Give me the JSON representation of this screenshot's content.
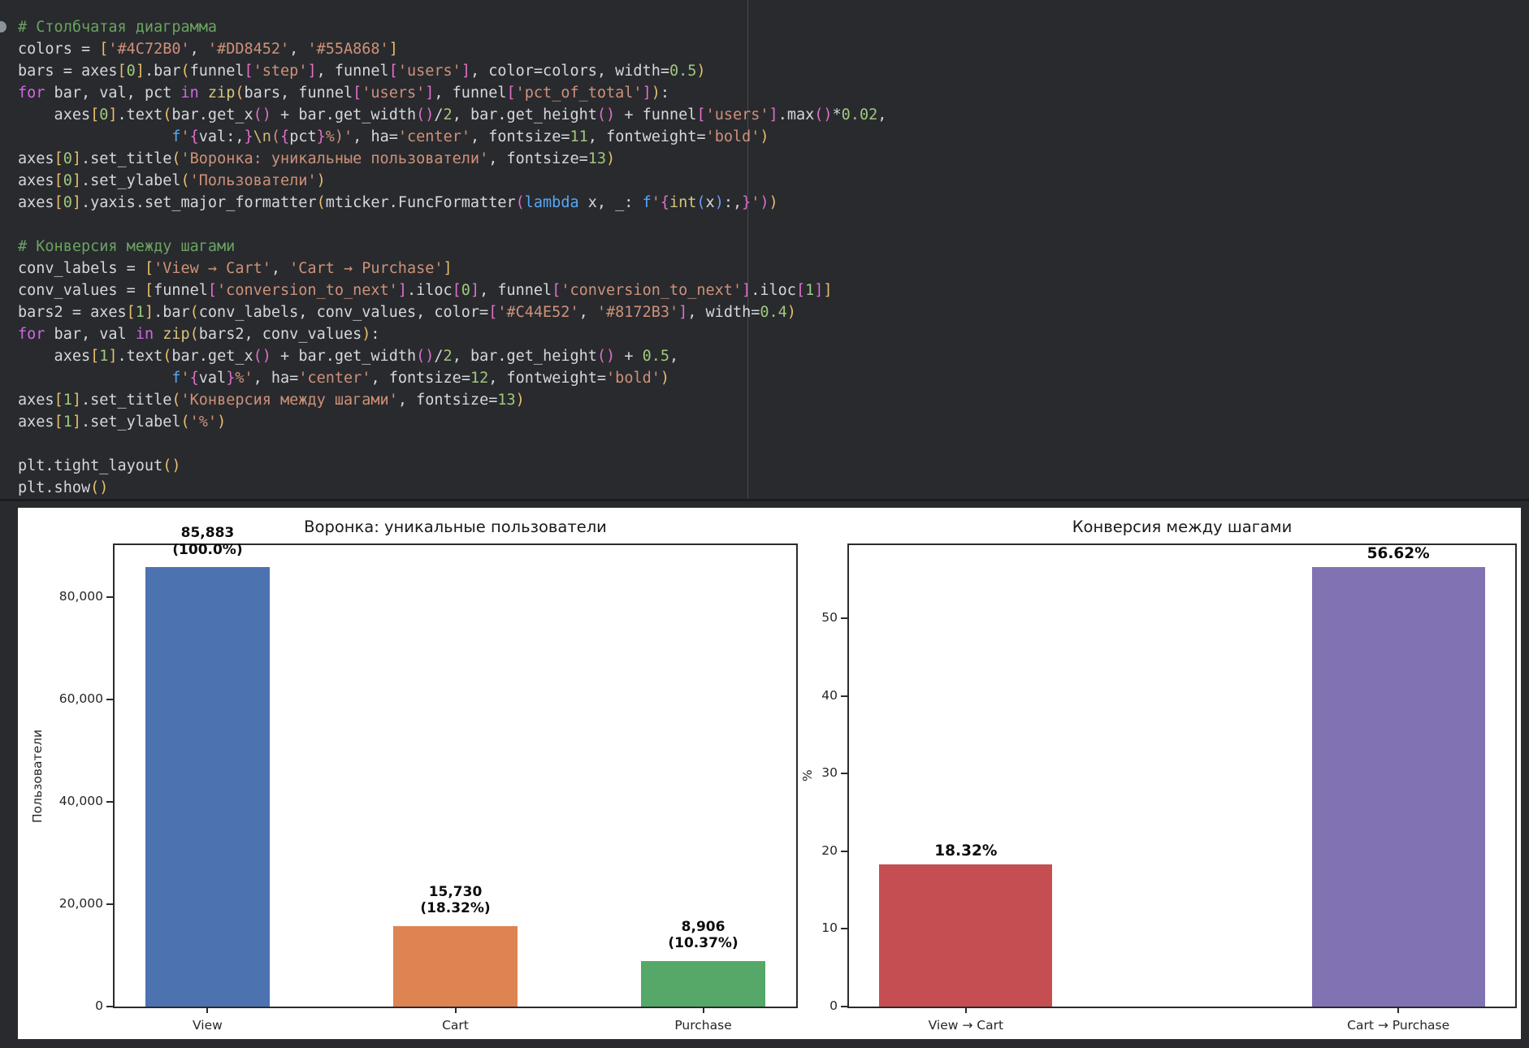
{
  "editor": {
    "code_lines": [
      [
        {
          "c": "cm",
          "t": "# Столбчатая диаграмма"
        }
      ],
      [
        {
          "c": "tx",
          "t": "colors = "
        },
        {
          "c": "b1",
          "t": "["
        },
        {
          "c": "st",
          "t": "'#4C72B0'"
        },
        {
          "c": "tx",
          "t": ", "
        },
        {
          "c": "st",
          "t": "'#DD8452'"
        },
        {
          "c": "tx",
          "t": ", "
        },
        {
          "c": "st",
          "t": "'#55A868'"
        },
        {
          "c": "b1",
          "t": "]"
        }
      ],
      [
        {
          "c": "tx",
          "t": "bars = axes"
        },
        {
          "c": "b1",
          "t": "["
        },
        {
          "c": "nu",
          "t": "0"
        },
        {
          "c": "b1",
          "t": "]"
        },
        {
          "c": "tx",
          "t": ".bar"
        },
        {
          "c": "b1",
          "t": "("
        },
        {
          "c": "tx",
          "t": "funnel"
        },
        {
          "c": "b2",
          "t": "["
        },
        {
          "c": "st",
          "t": "'step'"
        },
        {
          "c": "b2",
          "t": "]"
        },
        {
          "c": "tx",
          "t": ", funnel"
        },
        {
          "c": "b2",
          "t": "["
        },
        {
          "c": "st",
          "t": "'users'"
        },
        {
          "c": "b2",
          "t": "]"
        },
        {
          "c": "tx",
          "t": ", color=colors, width="
        },
        {
          "c": "nu",
          "t": "0.5"
        },
        {
          "c": "b1",
          "t": ")"
        }
      ],
      [
        {
          "c": "kw",
          "t": "for"
        },
        {
          "c": "tx",
          "t": " bar, val, pct "
        },
        {
          "c": "kw",
          "t": "in"
        },
        {
          "c": "tx",
          "t": " "
        },
        {
          "c": "bi",
          "t": "zip"
        },
        {
          "c": "b1",
          "t": "("
        },
        {
          "c": "tx",
          "t": "bars, funnel"
        },
        {
          "c": "b2",
          "t": "["
        },
        {
          "c": "st",
          "t": "'users'"
        },
        {
          "c": "b2",
          "t": "]"
        },
        {
          "c": "tx",
          "t": ", funnel"
        },
        {
          "c": "b2",
          "t": "["
        },
        {
          "c": "st",
          "t": "'pct_of_total'"
        },
        {
          "c": "b2",
          "t": "]"
        },
        {
          "c": "b1",
          "t": ")"
        },
        {
          "c": "tx",
          "t": ":"
        }
      ],
      [
        {
          "c": "tx",
          "t": "    axes"
        },
        {
          "c": "b1",
          "t": "["
        },
        {
          "c": "nu",
          "t": "0"
        },
        {
          "c": "b1",
          "t": "]"
        },
        {
          "c": "tx",
          "t": ".text"
        },
        {
          "c": "b1",
          "t": "("
        },
        {
          "c": "tx",
          "t": "bar.get_x"
        },
        {
          "c": "b2",
          "t": "()"
        },
        {
          "c": "tx",
          "t": " + bar.get_width"
        },
        {
          "c": "b2",
          "t": "()"
        },
        {
          "c": "tx",
          "t": "/"
        },
        {
          "c": "nu",
          "t": "2"
        },
        {
          "c": "tx",
          "t": ", bar.get_height"
        },
        {
          "c": "b2",
          "t": "()"
        },
        {
          "c": "tx",
          "t": " + funnel"
        },
        {
          "c": "b2",
          "t": "["
        },
        {
          "c": "st",
          "t": "'users'"
        },
        {
          "c": "b2",
          "t": "]"
        },
        {
          "c": "tx",
          "t": ".max"
        },
        {
          "c": "b2",
          "t": "()"
        },
        {
          "c": "tx",
          "t": "*"
        },
        {
          "c": "nu",
          "t": "0.02"
        },
        {
          "c": "tx",
          "t": ","
        }
      ],
      [
        {
          "c": "tx",
          "t": "                 "
        },
        {
          "c": "lb",
          "t": "f"
        },
        {
          "c": "st",
          "t": "'"
        },
        {
          "c": "b2",
          "t": "{"
        },
        {
          "c": "tx",
          "t": "val:,"
        },
        {
          "c": "b2",
          "t": "}"
        },
        {
          "c": "es",
          "t": "\\n"
        },
        {
          "c": "st",
          "t": "("
        },
        {
          "c": "b2",
          "t": "{"
        },
        {
          "c": "tx",
          "t": "pct"
        },
        {
          "c": "b2",
          "t": "}"
        },
        {
          "c": "st",
          "t": "%)'"
        },
        {
          "c": "tx",
          "t": ", ha="
        },
        {
          "c": "st",
          "t": "'center'"
        },
        {
          "c": "tx",
          "t": ", fontsize="
        },
        {
          "c": "nu",
          "t": "11"
        },
        {
          "c": "tx",
          "t": ", fontweight="
        },
        {
          "c": "st",
          "t": "'bold'"
        },
        {
          "c": "b1",
          "t": ")"
        }
      ],
      [
        {
          "c": "tx",
          "t": "axes"
        },
        {
          "c": "b1",
          "t": "["
        },
        {
          "c": "nu",
          "t": "0"
        },
        {
          "c": "b1",
          "t": "]"
        },
        {
          "c": "tx",
          "t": ".set_title"
        },
        {
          "c": "b1",
          "t": "("
        },
        {
          "c": "st",
          "t": "'Воронка: уникальные пользователи'"
        },
        {
          "c": "tx",
          "t": ", fontsize="
        },
        {
          "c": "nu",
          "t": "13"
        },
        {
          "c": "b1",
          "t": ")"
        }
      ],
      [
        {
          "c": "tx",
          "t": "axes"
        },
        {
          "c": "b1",
          "t": "["
        },
        {
          "c": "nu",
          "t": "0"
        },
        {
          "c": "b1",
          "t": "]"
        },
        {
          "c": "tx",
          "t": ".set_ylabel"
        },
        {
          "c": "b1",
          "t": "("
        },
        {
          "c": "st",
          "t": "'Пользователи'"
        },
        {
          "c": "b1",
          "t": ")"
        }
      ],
      [
        {
          "c": "tx",
          "t": "axes"
        },
        {
          "c": "b1",
          "t": "["
        },
        {
          "c": "nu",
          "t": "0"
        },
        {
          "c": "b1",
          "t": "]"
        },
        {
          "c": "tx",
          "t": ".yaxis.set_major_formatter"
        },
        {
          "c": "b1",
          "t": "("
        },
        {
          "c": "tx",
          "t": "mticker.FuncFormatter"
        },
        {
          "c": "b2",
          "t": "("
        },
        {
          "c": "lb",
          "t": "lambda"
        },
        {
          "c": "tx",
          "t": " x, _: "
        },
        {
          "c": "lb",
          "t": "f"
        },
        {
          "c": "st",
          "t": "'"
        },
        {
          "c": "b2",
          "t": "{"
        },
        {
          "c": "bi",
          "t": "int"
        },
        {
          "c": "b3",
          "t": "("
        },
        {
          "c": "tx",
          "t": "x"
        },
        {
          "c": "b3",
          "t": ")"
        },
        {
          "c": "tx",
          "t": ":,"
        },
        {
          "c": "b2",
          "t": "}"
        },
        {
          "c": "st",
          "t": "'"
        },
        {
          "c": "b2",
          "t": ")"
        },
        {
          "c": "b1",
          "t": ")"
        }
      ],
      [],
      [
        {
          "c": "cm",
          "t": "# Конверсия между шагами"
        }
      ],
      [
        {
          "c": "tx",
          "t": "conv_labels = "
        },
        {
          "c": "b1",
          "t": "["
        },
        {
          "c": "st",
          "t": "'View → Cart'"
        },
        {
          "c": "tx",
          "t": ", "
        },
        {
          "c": "st",
          "t": "'Cart → Purchase'"
        },
        {
          "c": "b1",
          "t": "]"
        }
      ],
      [
        {
          "c": "tx",
          "t": "conv_values = "
        },
        {
          "c": "b1",
          "t": "["
        },
        {
          "c": "tx",
          "t": "funnel"
        },
        {
          "c": "b2",
          "t": "["
        },
        {
          "c": "st",
          "t": "'conversion_to_next'"
        },
        {
          "c": "b2",
          "t": "]"
        },
        {
          "c": "tx",
          "t": ".iloc"
        },
        {
          "c": "b2",
          "t": "["
        },
        {
          "c": "nu",
          "t": "0"
        },
        {
          "c": "b2",
          "t": "]"
        },
        {
          "c": "tx",
          "t": ", funnel"
        },
        {
          "c": "b2",
          "t": "["
        },
        {
          "c": "st",
          "t": "'conversion_to_next'"
        },
        {
          "c": "b2",
          "t": "]"
        },
        {
          "c": "tx",
          "t": ".iloc"
        },
        {
          "c": "b2",
          "t": "["
        },
        {
          "c": "nu",
          "t": "1"
        },
        {
          "c": "b2",
          "t": "]"
        },
        {
          "c": "b1",
          "t": "]"
        }
      ],
      [
        {
          "c": "tx",
          "t": "bars2 = axes"
        },
        {
          "c": "b1",
          "t": "["
        },
        {
          "c": "nu",
          "t": "1"
        },
        {
          "c": "b1",
          "t": "]"
        },
        {
          "c": "tx",
          "t": ".bar"
        },
        {
          "c": "b1",
          "t": "("
        },
        {
          "c": "tx",
          "t": "conv_labels, conv_values, color="
        },
        {
          "c": "b2",
          "t": "["
        },
        {
          "c": "st",
          "t": "'#C44E52'"
        },
        {
          "c": "tx",
          "t": ", "
        },
        {
          "c": "st",
          "t": "'#8172B3'"
        },
        {
          "c": "b2",
          "t": "]"
        },
        {
          "c": "tx",
          "t": ", width="
        },
        {
          "c": "nu",
          "t": "0.4"
        },
        {
          "c": "b1",
          "t": ")"
        }
      ],
      [
        {
          "c": "kw",
          "t": "for"
        },
        {
          "c": "tx",
          "t": " bar, val "
        },
        {
          "c": "kw",
          "t": "in"
        },
        {
          "c": "tx",
          "t": " "
        },
        {
          "c": "bi",
          "t": "zip"
        },
        {
          "c": "b1",
          "t": "("
        },
        {
          "c": "tx",
          "t": "bars2, conv_values"
        },
        {
          "c": "b1",
          "t": ")"
        },
        {
          "c": "tx",
          "t": ":"
        }
      ],
      [
        {
          "c": "tx",
          "t": "    axes"
        },
        {
          "c": "b1",
          "t": "["
        },
        {
          "c": "nu",
          "t": "1"
        },
        {
          "c": "b1",
          "t": "]"
        },
        {
          "c": "tx",
          "t": ".text"
        },
        {
          "c": "b1",
          "t": "("
        },
        {
          "c": "tx",
          "t": "bar.get_x"
        },
        {
          "c": "b2",
          "t": "()"
        },
        {
          "c": "tx",
          "t": " + bar.get_width"
        },
        {
          "c": "b2",
          "t": "()"
        },
        {
          "c": "tx",
          "t": "/"
        },
        {
          "c": "nu",
          "t": "2"
        },
        {
          "c": "tx",
          "t": ", bar.get_height"
        },
        {
          "c": "b2",
          "t": "()"
        },
        {
          "c": "tx",
          "t": " + "
        },
        {
          "c": "nu",
          "t": "0.5"
        },
        {
          "c": "tx",
          "t": ","
        }
      ],
      [
        {
          "c": "tx",
          "t": "                 "
        },
        {
          "c": "lb",
          "t": "f"
        },
        {
          "c": "st",
          "t": "'"
        },
        {
          "c": "b2",
          "t": "{"
        },
        {
          "c": "tx",
          "t": "val"
        },
        {
          "c": "b2",
          "t": "}"
        },
        {
          "c": "st",
          "t": "%'"
        },
        {
          "c": "tx",
          "t": ", ha="
        },
        {
          "c": "st",
          "t": "'center'"
        },
        {
          "c": "tx",
          "t": ", fontsize="
        },
        {
          "c": "nu",
          "t": "12"
        },
        {
          "c": "tx",
          "t": ", fontweight="
        },
        {
          "c": "st",
          "t": "'bold'"
        },
        {
          "c": "b1",
          "t": ")"
        }
      ],
      [
        {
          "c": "tx",
          "t": "axes"
        },
        {
          "c": "b1",
          "t": "["
        },
        {
          "c": "nu",
          "t": "1"
        },
        {
          "c": "b1",
          "t": "]"
        },
        {
          "c": "tx",
          "t": ".set_title"
        },
        {
          "c": "b1",
          "t": "("
        },
        {
          "c": "st",
          "t": "'Конверсия между шагами'"
        },
        {
          "c": "tx",
          "t": ", fontsize="
        },
        {
          "c": "nu",
          "t": "13"
        },
        {
          "c": "b1",
          "t": ")"
        }
      ],
      [
        {
          "c": "tx",
          "t": "axes"
        },
        {
          "c": "b1",
          "t": "["
        },
        {
          "c": "nu",
          "t": "1"
        },
        {
          "c": "b1",
          "t": "]"
        },
        {
          "c": "tx",
          "t": ".set_ylabel"
        },
        {
          "c": "b1",
          "t": "("
        },
        {
          "c": "st",
          "t": "'%'"
        },
        {
          "c": "b1",
          "t": ")"
        }
      ],
      [],
      [
        {
          "c": "tx",
          "t": "plt.tight_layout"
        },
        {
          "c": "b1",
          "t": "()"
        }
      ],
      [
        {
          "c": "tx",
          "t": "plt.show"
        },
        {
          "c": "b1",
          "t": "()"
        }
      ]
    ]
  },
  "chart_data": [
    {
      "type": "bar",
      "title": "Воронка: уникальные пользователи",
      "ylabel": "Пользователи",
      "categories": [
        "View",
        "Cart",
        "Purchase"
      ],
      "values": [
        85883,
        15730,
        8906
      ],
      "pct_of_total": [
        100.0,
        18.32,
        10.37
      ],
      "bar_labels": [
        [
          "85,883",
          "(100.0%)"
        ],
        [
          "15,730",
          "(18.32%)"
        ],
        [
          "8,906",
          "(10.37%)"
        ]
      ],
      "colors": [
        "#4C72B0",
        "#DD8452",
        "#55A868"
      ],
      "ylim": [
        0,
        90177
      ],
      "yticks": [
        0,
        20000,
        40000,
        60000,
        80000
      ],
      "ytick_labels": [
        "0",
        "20,000",
        "40,000",
        "60,000",
        "80,000"
      ],
      "label_offset": 1718,
      "grid": false,
      "legend": null,
      "centers_frac": [
        0.1364,
        0.5,
        0.8636
      ],
      "bar_width_frac": 0.1818
    },
    {
      "type": "bar",
      "title": "Конверсия между шагами",
      "ylabel": "%",
      "categories": [
        "View → Cart",
        "Cart → Purchase"
      ],
      "values": [
        18.32,
        56.62
      ],
      "bar_labels": [
        [
          "18.32%"
        ],
        [
          "56.62%"
        ]
      ],
      "colors": [
        "#C44E52",
        "#8172B3"
      ],
      "ylim": [
        0,
        59.45
      ],
      "yticks": [
        0,
        10,
        20,
        30,
        40,
        50
      ],
      "ytick_labels": [
        "0",
        "10",
        "20",
        "30",
        "40",
        "50"
      ],
      "label_offset": 0.5,
      "grid": false,
      "legend": null,
      "centers_frac": [
        0.1754,
        0.8246
      ],
      "bar_width_frac": 0.26
    }
  ]
}
